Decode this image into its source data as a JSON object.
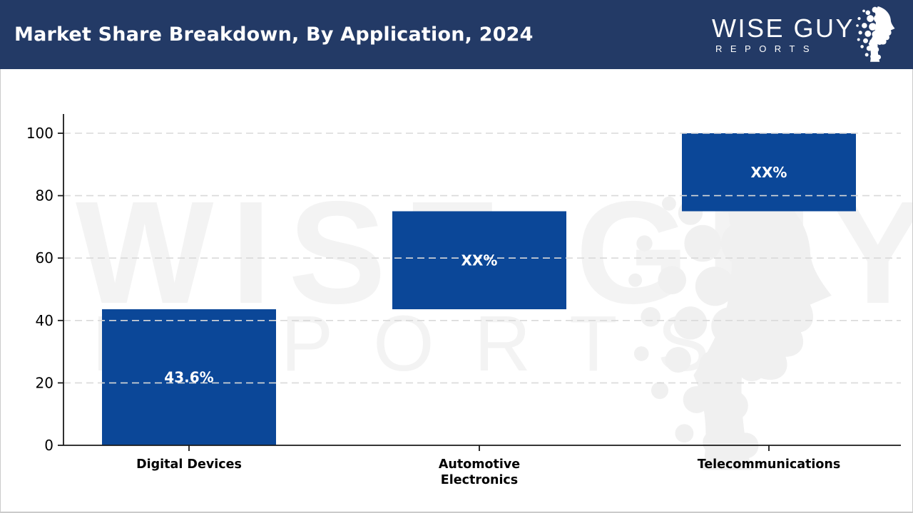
{
  "header": {
    "title": "Market Share Breakdown, By Application, 2024",
    "bg_color": "#233a66",
    "logo": {
      "line1": "WISE GUY",
      "line2": "REPORTS"
    }
  },
  "watermark": {
    "line1": "WISE GUY",
    "line2": "REPORTS"
  },
  "chart_data": {
    "type": "bar",
    "subtype": "waterfall",
    "title": "Market Share Breakdown, By Application, 2024",
    "categories": [
      "Digital Devices",
      "Automotive Electronics",
      "Telecommunications"
    ],
    "category_label_lines": [
      [
        "Digital Devices"
      ],
      [
        "Automotive",
        "Electronics"
      ],
      [
        "Telecommunications"
      ]
    ],
    "bars": [
      {
        "category": "Digital Devices",
        "start": 0,
        "end": 43.6,
        "value": 43.6,
        "label": "43.6%"
      },
      {
        "category": "Automotive Electronics",
        "start": 43.6,
        "end": 75,
        "value": 31.4,
        "label": "XX%"
      },
      {
        "category": "Telecommunications",
        "start": 75,
        "end": 100,
        "value": 25,
        "label": "XX%"
      }
    ],
    "xlabel": "",
    "ylabel": "",
    "ylim": [
      0,
      106
    ],
    "yticks": [
      0,
      20,
      40,
      60,
      80,
      100
    ],
    "grid": {
      "axis": "y",
      "style": "dashed",
      "color": "#d9d9d9",
      "over_bars": true
    },
    "legend": null,
    "colors": {
      "bar": "#0b4798",
      "bar_label": "#ffffff",
      "axis": "#1a1a1a",
      "tick_label": "#000000",
      "background": "#ffffff"
    }
  }
}
